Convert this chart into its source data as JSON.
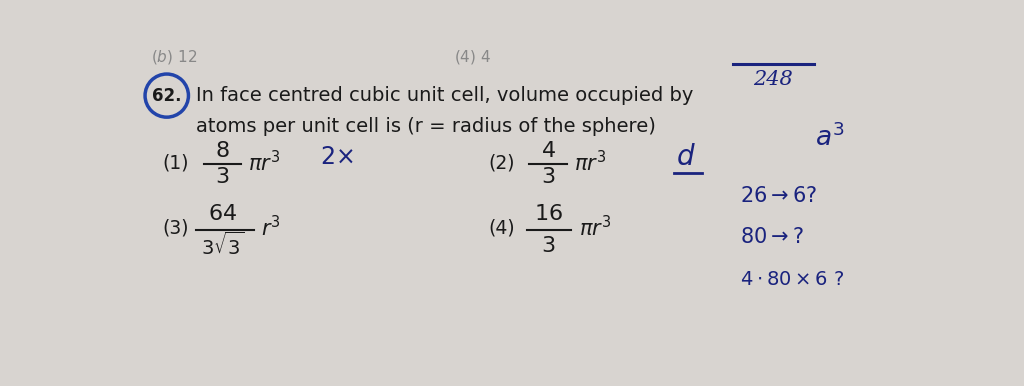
{
  "bg_color": "#d8d4d0",
  "question_line1": "In face centred cubic unit cell, volume occupied by",
  "question_line2": "atoms per unit cell is (r = radius of the sphere)",
  "handwritten_color": "#1a237e",
  "printed_color": "#1a1a1a",
  "circle_color": "#2244aa",
  "gray_color": "#888888"
}
